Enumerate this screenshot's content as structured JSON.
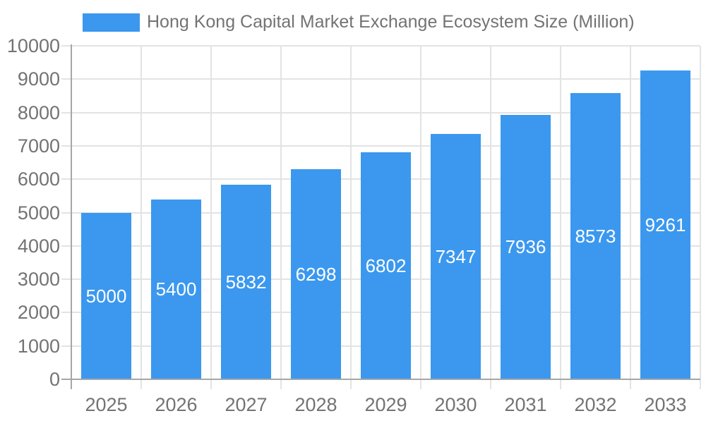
{
  "chart_data": {
    "type": "bar",
    "title": "Hong Kong Capital Market Exchange Ecosystem Size (Million)",
    "legend": [
      "Hong Kong Capital Market Exchange Ecosystem Size (Million)"
    ],
    "legend_position": "top",
    "categories": [
      "2025",
      "2026",
      "2027",
      "2028",
      "2029",
      "2030",
      "2031",
      "2032",
      "2033"
    ],
    "values": [
      5000,
      5400,
      5832,
      6298,
      6802,
      7347,
      7936,
      8573,
      9261
    ],
    "value_labels": [
      "5000",
      "5400",
      "5832",
      "6298",
      "6802",
      "7347",
      "7936",
      "8573",
      "9261"
    ],
    "xlabel": "",
    "ylabel": "",
    "ylim": [
      0,
      10000
    ],
    "ytick_step": 1000,
    "ytick_labels": [
      "0",
      "1000",
      "2000",
      "3000",
      "4000",
      "5000",
      "6000",
      "7000",
      "8000",
      "9000",
      "10000"
    ],
    "grid": true,
    "colors": {
      "bar": "#3b98ee",
      "grid": "#e3e3e3",
      "axis": "#a6a6a6",
      "text": "#737373",
      "value_label": "#ffffff",
      "background": "#ffffff"
    }
  }
}
